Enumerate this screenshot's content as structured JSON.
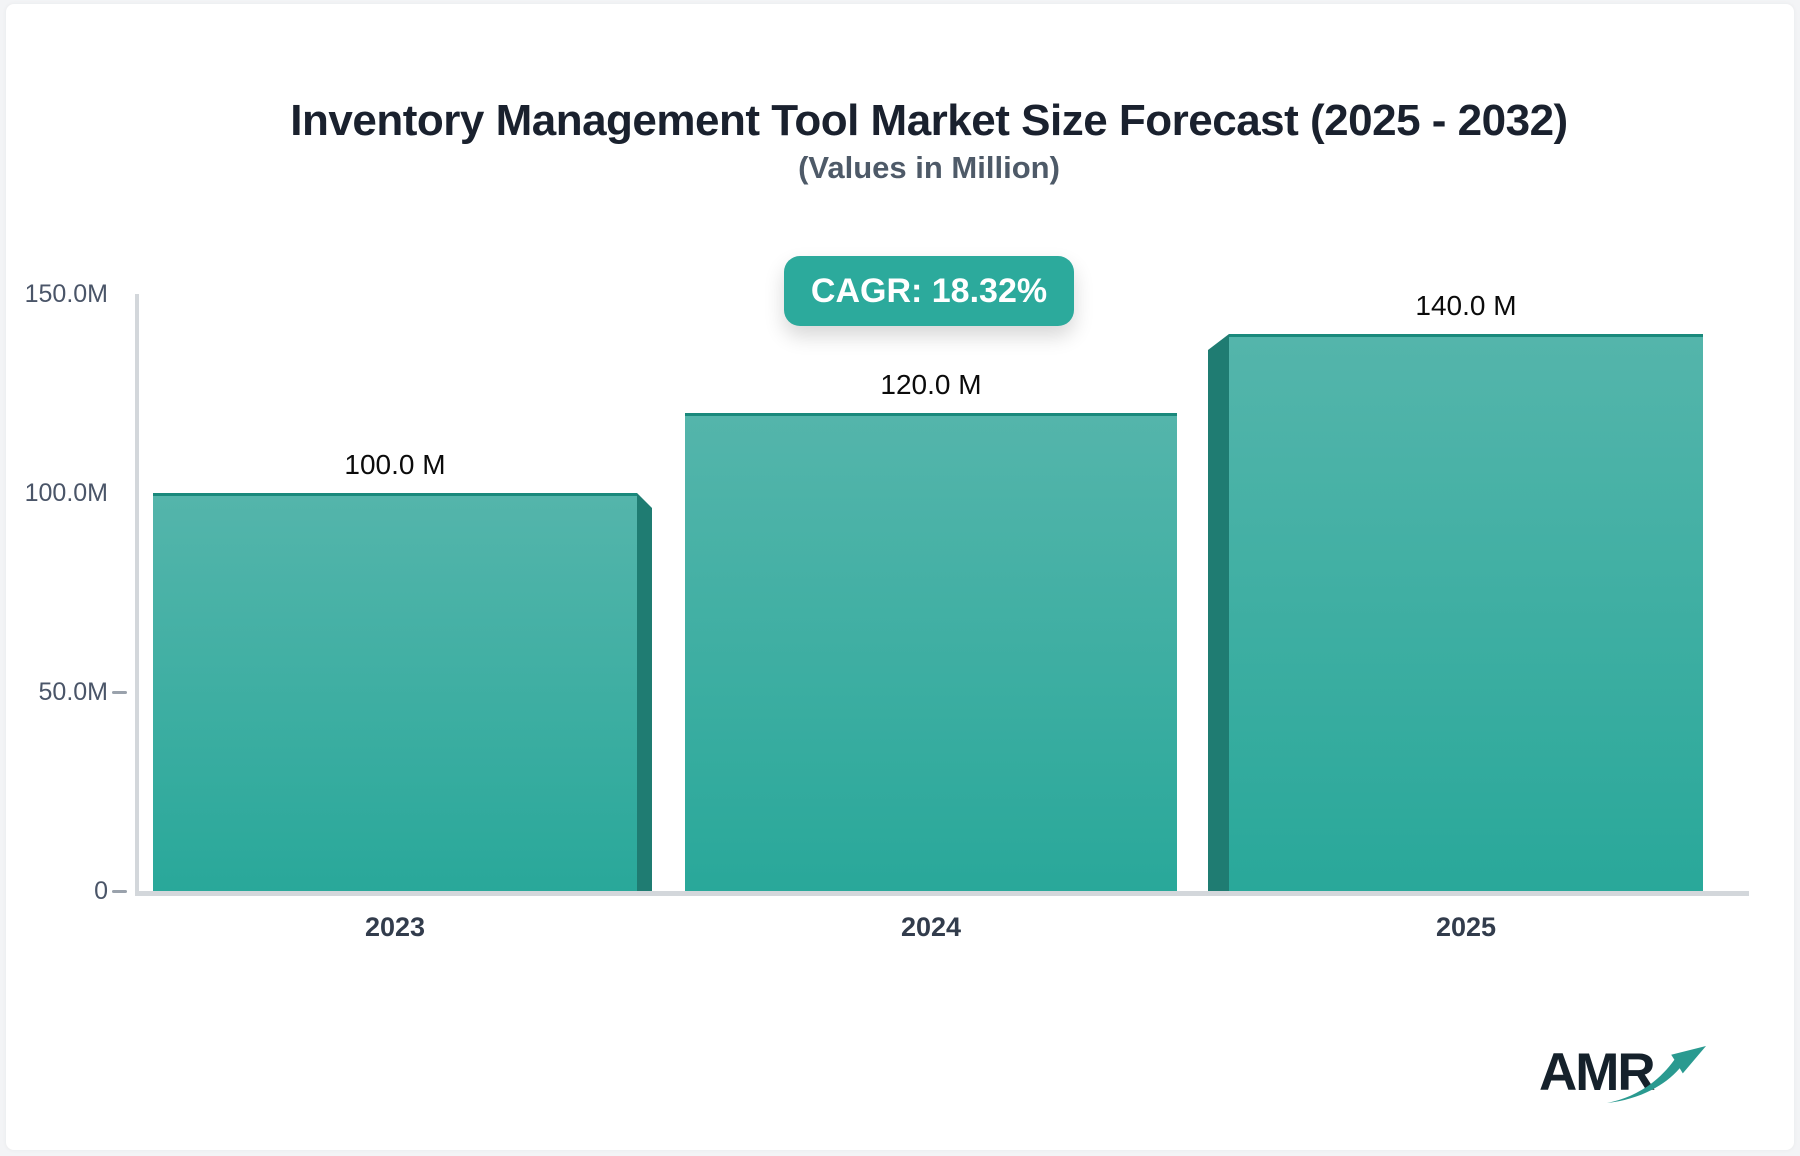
{
  "header": {
    "title": "Inventory Management Tool Market Size Forecast (2025 - 2032)",
    "subtitle": "(Values in Million)",
    "cagr_badge": "CAGR: 18.32%"
  },
  "logo": {
    "text": "AMR"
  },
  "colors": {
    "bar_top": "#54b5ab",
    "bar_bottom": "#29a89a",
    "bar_border": "#1a897c",
    "bar_side": "#1f7c72",
    "badge_bg": "#2caa9c",
    "badge_text": "#ffffff",
    "axis_line": "#d3d7db",
    "title_text": "#1a212e",
    "subtitle_text": "#4e5a68",
    "tick_text": "#4a5568",
    "category_text": "#323c4c",
    "value_text": "#0b0b0b",
    "logo_text": "#15212b",
    "logo_arrow": "#2a9a90"
  },
  "chart_data": {
    "type": "bar",
    "title": "Inventory Management Tool Market Size Forecast (2025 - 2032)",
    "subtitle": "(Values in Million)",
    "unit": "Million",
    "cagr": "18.32%",
    "categories": [
      "2023",
      "2024",
      "2025"
    ],
    "values": [
      100,
      120,
      140
    ],
    "value_labels": [
      "100.0 M",
      "120.0 M",
      "140.0 M"
    ],
    "ylim": [
      0,
      150
    ],
    "yticks": [
      {
        "value": 150,
        "label": "150.0M"
      },
      {
        "value": 100,
        "label": "100.0M"
      },
      {
        "value": 50,
        "label": "50.0M"
      },
      {
        "value": 0,
        "label": "0"
      }
    ],
    "grid": false,
    "legend": false,
    "bar_style": "3d-gradient-teal"
  }
}
